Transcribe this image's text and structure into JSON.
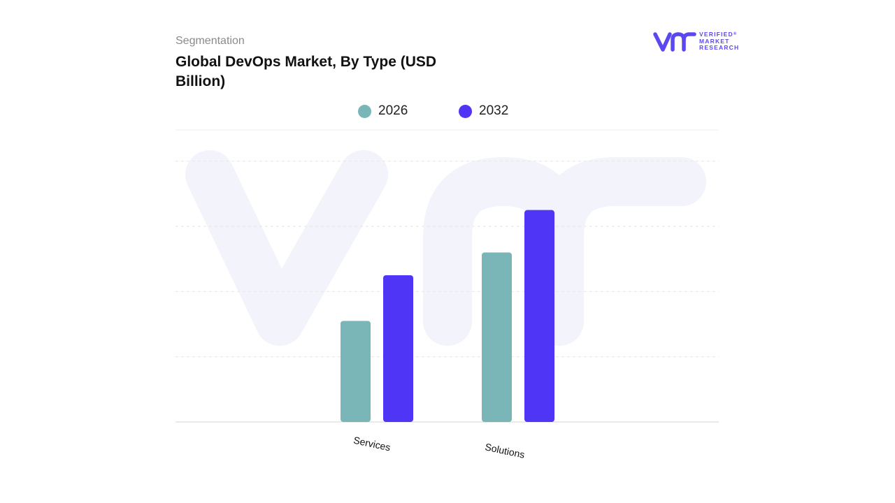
{
  "header": {
    "subtitle": "Segmentation",
    "title": "Global DevOps Market, By Type (USD Billion)"
  },
  "logo": {
    "mark": "vmr",
    "lines": [
      "VERIFIED",
      "MARKET",
      "RESEARCH"
    ],
    "registered": "®"
  },
  "colors": {
    "series_2026": "#7ab5b8",
    "series_2032": "#4f35f5",
    "grid": "#e6e6e6",
    "watermark": "#f2f3fb"
  },
  "chart_data": {
    "type": "bar",
    "title": "Global DevOps Market, By Type (USD Billion)",
    "categories": [
      "Services",
      "Solutions"
    ],
    "series": [
      {
        "name": "2026",
        "values": [
          3.1,
          5.2
        ]
      },
      {
        "name": "2032",
        "values": [
          4.5,
          6.5
        ]
      }
    ],
    "ylim": [
      0,
      9
    ],
    "grid": true,
    "legend_position": "top-center",
    "y_tick_labels_shown": false
  }
}
